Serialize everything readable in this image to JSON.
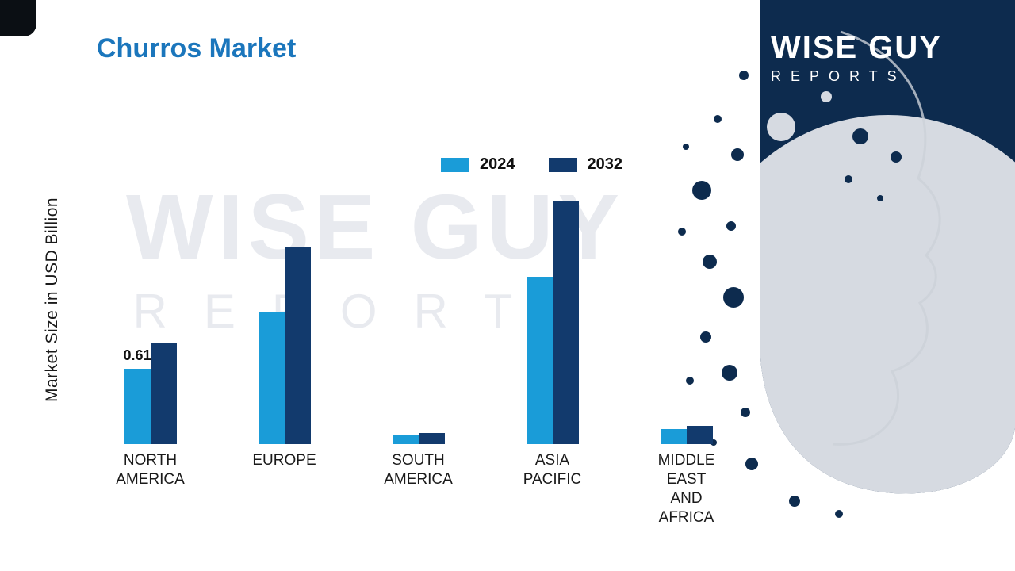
{
  "page": {
    "title": "Churros Market"
  },
  "logo": {
    "line1": "WISE GUY",
    "line2": "REPORTS"
  },
  "watermark": {
    "line1": "WISE GUY",
    "line2": "REPORTS"
  },
  "colors": {
    "title_blue": "#1b76bc",
    "series_2024": "#1a9cd8",
    "series_2032": "#123a6d",
    "panel_navy": "#0d2b4e",
    "watermark_gray": "#e8eaef"
  },
  "chart_data": {
    "type": "bar",
    "title": "Churros Market",
    "ylabel": "Market Size in USD Billion",
    "xlabel": "",
    "units": "USD Billion",
    "categories": [
      "NORTH\nAMERICA",
      "EUROPE",
      "SOUTH\nAMERICA",
      "ASIA\nPACIFIC",
      "MIDDLE\nEAST\nAND\nAFRICA"
    ],
    "series": [
      {
        "name": "2024",
        "color": "#1a9cd8",
        "values": [
          0.61,
          1.08,
          0.07,
          1.36,
          0.12
        ],
        "labels": [
          "0.61",
          "",
          "",
          "",
          ""
        ]
      },
      {
        "name": "2032",
        "color": "#123a6d",
        "values": [
          0.82,
          1.6,
          0.09,
          1.98,
          0.15
        ],
        "labels": [
          "",
          "",
          "",
          "",
          ""
        ]
      }
    ],
    "ylim": [
      0,
      2.2
    ],
    "grid": false,
    "legend_position": "top-center"
  }
}
